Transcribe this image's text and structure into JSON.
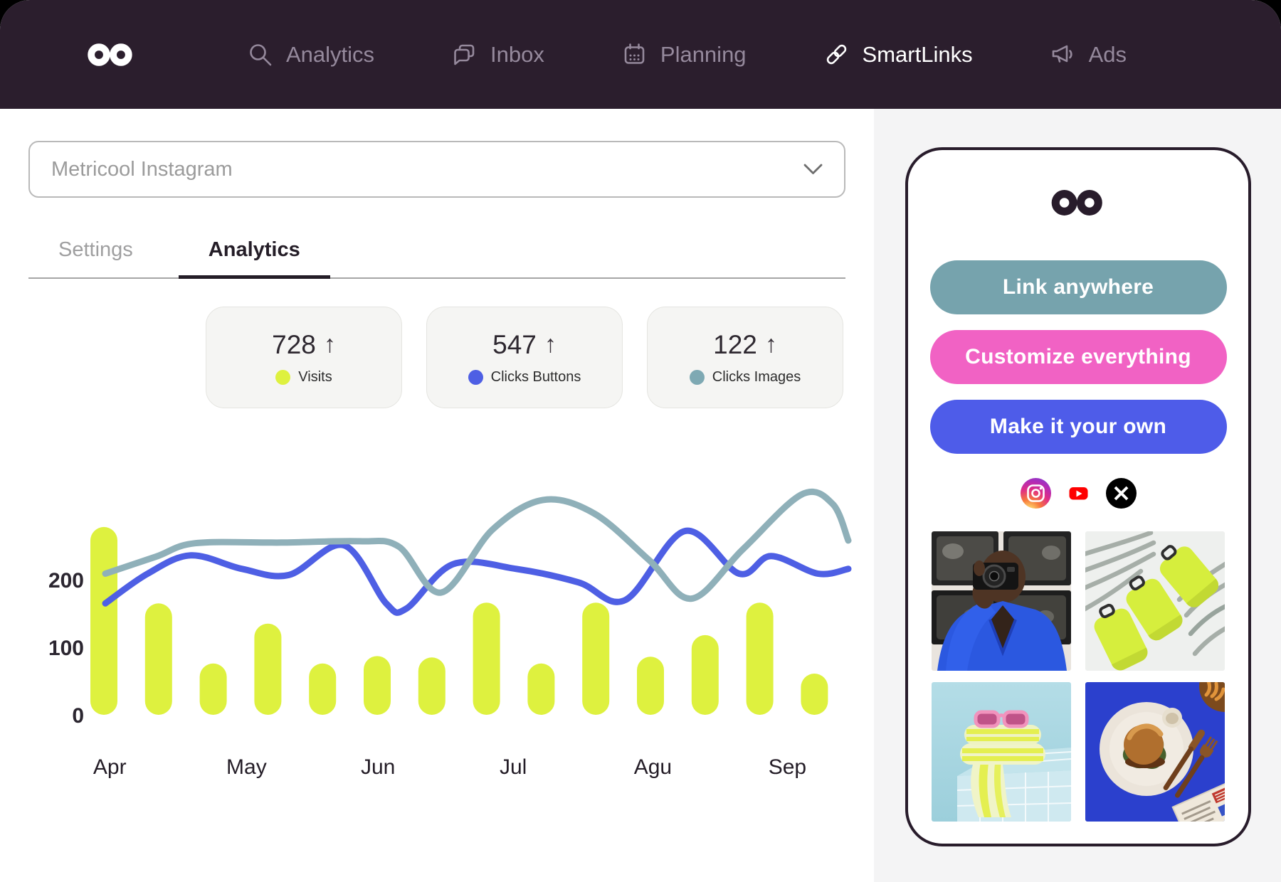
{
  "window": {
    "topbar_color": "#2b1e2d",
    "panel_color": "#f4f4f5"
  },
  "nav": {
    "logo": "metricool-infinity-logo",
    "items": [
      {
        "label": "Analytics",
        "icon": "search",
        "active": false
      },
      {
        "label": "Inbox",
        "icon": "chat",
        "active": false
      },
      {
        "label": "Planning",
        "icon": "calendar",
        "active": false
      },
      {
        "label": "SmartLinks",
        "icon": "link",
        "active": true
      },
      {
        "label": "Ads",
        "icon": "megaphone",
        "active": false
      }
    ]
  },
  "profile_selector": {
    "value": "Metricool Instagram"
  },
  "tabs": [
    {
      "label": "Settings",
      "active": false
    },
    {
      "label": "Analytics",
      "active": true
    }
  ],
  "stats": [
    {
      "value": "728",
      "arrow": "↑",
      "label": "Visits",
      "color": "#def13f"
    },
    {
      "value": "547",
      "arrow": "↑",
      "label": "Clicks Buttons",
      "color": "#4e5fe4"
    },
    {
      "value": "122",
      "arrow": "↑",
      "label": "Clicks Images",
      "color": "#7ea9b3"
    }
  ],
  "chart_data": {
    "type": "combo-bar-line",
    "x_axis": {
      "month_labels": [
        "Apr",
        "May",
        "Jun",
        "Jul",
        "Agu",
        "Sep"
      ],
      "month_positions": [
        0.006,
        0.19,
        0.367,
        0.549,
        0.737,
        0.918
      ]
    },
    "y_axis": {
      "ticks": [
        "0",
        "100",
        "200"
      ],
      "tick_values": [
        0,
        100,
        200
      ],
      "max": 340,
      "grid": false
    },
    "bars": {
      "name": "Visits",
      "color": "#def13f",
      "values": [
        278,
        165,
        76,
        135,
        76,
        87,
        85,
        166,
        76,
        166,
        86,
        118,
        166,
        61
      ]
    },
    "lines": [
      {
        "name": "Clicks Buttons",
        "color": "#4e5fe4",
        "points": [
          [
            0,
            165
          ],
          [
            0.057,
            209
          ],
          [
            0.115,
            236
          ],
          [
            0.184,
            216
          ],
          [
            0.247,
            207
          ],
          [
            0.321,
            251
          ],
          [
            0.378,
            165
          ],
          [
            0.405,
            157
          ],
          [
            0.468,
            223
          ],
          [
            0.553,
            216
          ],
          [
            0.637,
            196
          ],
          [
            0.7,
            170
          ],
          [
            0.78,
            272
          ],
          [
            0.853,
            209
          ],
          [
            0.896,
            235
          ],
          [
            0.959,
            209
          ],
          [
            1,
            216
          ]
        ]
      },
      {
        "name": "Clicks Images",
        "color": "#8fb0b9",
        "points": [
          [
            0,
            209
          ],
          [
            0.068,
            234
          ],
          [
            0.121,
            254
          ],
          [
            0.237,
            255
          ],
          [
            0.342,
            257
          ],
          [
            0.395,
            249
          ],
          [
            0.452,
            181
          ],
          [
            0.521,
            274
          ],
          [
            0.589,
            318
          ],
          [
            0.658,
            298
          ],
          [
            0.732,
            229
          ],
          [
            0.789,
            172
          ],
          [
            0.858,
            245
          ],
          [
            0.937,
            326
          ],
          [
            0.979,
            312
          ],
          [
            1,
            258
          ]
        ]
      }
    ],
    "legend_position": "none"
  },
  "phone": {
    "logo": "metricool-infinity-logo",
    "buttons": [
      {
        "label": "Link anywhere",
        "color": "#76a3ad"
      },
      {
        "label": "Customize everything",
        "color": "#f162c4"
      },
      {
        "label": "Make it your own",
        "color": "#4e5ce9"
      }
    ],
    "social": [
      "Instagram",
      "YouTube",
      "X"
    ],
    "gallery": [
      "Person in a blue blazer taking a photo with a camera in front of stacked TVs",
      "Three neon yellow suitcases with palm leaf shadows",
      "Folded yellow striped towels with pink sunglasses on a blue tiled block",
      "Burger on a white plate with wooden cutlery on a blue background"
    ]
  }
}
